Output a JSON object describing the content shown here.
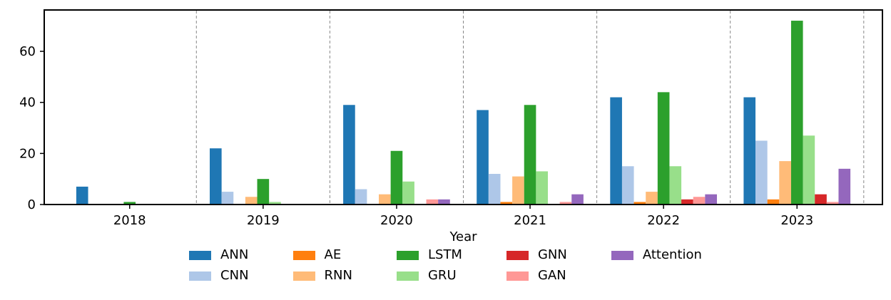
{
  "figure": {
    "background": "#ffffff",
    "axis_color": "#000000",
    "grid_color": "#888888"
  },
  "chart_data": {
    "type": "bar",
    "title": "",
    "xlabel": "Year",
    "ylabel": "",
    "categories": [
      "2018",
      "2019",
      "2020",
      "2021",
      "2022",
      "2023"
    ],
    "series": [
      {
        "name": "ANN",
        "color": "#1f77b4",
        "values": [
          7,
          22,
          39,
          37,
          42,
          42
        ]
      },
      {
        "name": "CNN",
        "color": "#aec7e8",
        "values": [
          0,
          5,
          6,
          12,
          15,
          25
        ]
      },
      {
        "name": "AE",
        "color": "#ff7f0e",
        "values": [
          0,
          0,
          0,
          1,
          1,
          2
        ]
      },
      {
        "name": "RNN",
        "color": "#ffbb78",
        "values": [
          0,
          3,
          4,
          11,
          5,
          17
        ]
      },
      {
        "name": "LSTM",
        "color": "#2ca02c",
        "values": [
          1,
          10,
          21,
          39,
          44,
          72
        ]
      },
      {
        "name": "GRU",
        "color": "#98df8a",
        "values": [
          0,
          1,
          9,
          13,
          15,
          27
        ]
      },
      {
        "name": "GNN",
        "color": "#d62728",
        "values": [
          0,
          0,
          0,
          0,
          2,
          4
        ]
      },
      {
        "name": "GAN",
        "color": "#ff9896",
        "values": [
          0,
          0,
          2,
          1,
          3,
          1
        ]
      },
      {
        "name": "Attention",
        "color": "#9467bd",
        "values": [
          0,
          0,
          2,
          4,
          4,
          14
        ]
      }
    ],
    "yticks": [
      0,
      20,
      40,
      60
    ],
    "ylim": [
      0,
      76.2
    ],
    "grid": "dashed vertical separators between year groups and at plot ends",
    "legend_position": "bottom-center, 2 rows, column-major"
  }
}
